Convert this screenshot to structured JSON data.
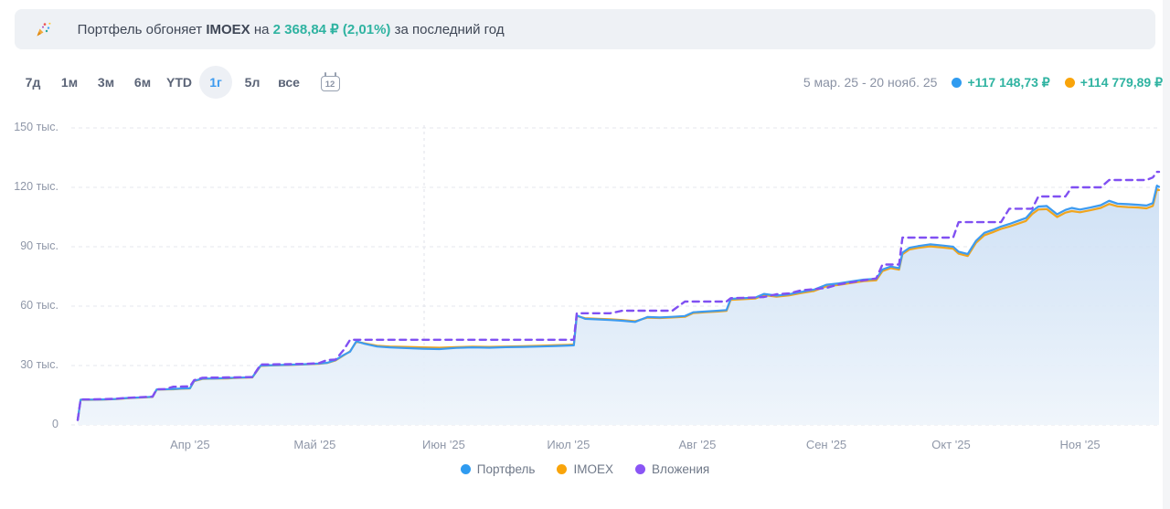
{
  "banner": {
    "icon": "party-popper",
    "text_before": "Портфель обгоняет ",
    "index_name": "IMOEX",
    "text_middle": " на ",
    "highlight": "2 368,84 ₽ (2,01%)",
    "text_after": " за последний год"
  },
  "toolbar": {
    "periods": [
      {
        "label": "7д",
        "selected": false
      },
      {
        "label": "1м",
        "selected": false
      },
      {
        "label": "3м",
        "selected": false
      },
      {
        "label": "6м",
        "selected": false
      },
      {
        "label": "YTD",
        "selected": false
      },
      {
        "label": "1г",
        "selected": true
      },
      {
        "label": "5л",
        "selected": false
      },
      {
        "label": "все",
        "selected": false
      }
    ],
    "calendar_day": "12",
    "date_range": "5 мар. 25 - 20 нояб. 25",
    "deltas": [
      {
        "series": "Портфель",
        "color": "#2f9bf0",
        "value": "+117 148,73 ₽"
      },
      {
        "series": "IMOEX",
        "color": "#f9a40a",
        "value": "+114 779,89 ₽"
      }
    ]
  },
  "legend": [
    {
      "label": "Портфель",
      "color": "#2f9bf0"
    },
    {
      "label": "IMOEX",
      "color": "#f9a40a"
    },
    {
      "label": "Вложения",
      "color": "#8a55f5"
    }
  ],
  "colors": {
    "accent_teal": "#2fb3a1",
    "portfolio_blue": "#3d9bf0",
    "imoex_orange": "#f0a51e",
    "deposits_purple": "#8050f2",
    "banner_bg": "#eef1f5",
    "grid": "#e4e7ed",
    "axis_text": "#8f97a8"
  },
  "chart_data": {
    "type": "line",
    "title": "Portfolio vs IMOEX vs contributions, last year",
    "x_unit": "days since 5 Mar 2025",
    "value_unit": "thousand ₽",
    "ylim": [
      0,
      150
    ],
    "grid": true,
    "legend_position": "bottom",
    "crosshair_day": 83.3,
    "yticks": [
      {
        "value": 0,
        "label": "0"
      },
      {
        "value": 30,
        "label": "30 тыс."
      },
      {
        "value": 60,
        "label": "60 тыс."
      },
      {
        "value": 90,
        "label": "90 тыс."
      },
      {
        "value": 120,
        "label": "120 тыс."
      },
      {
        "value": 150,
        "label": "150 тыс."
      }
    ],
    "months": [
      {
        "label": "Апр '25",
        "day": 27
      },
      {
        "label": "Май '25",
        "day": 57
      },
      {
        "label": "Июн '25",
        "day": 88
      },
      {
        "label": "Июл '25",
        "day": 118
      },
      {
        "label": "Авг '25",
        "day": 149
      },
      {
        "label": "Сен '25",
        "day": 180
      },
      {
        "label": "Окт '25",
        "day": 210
      },
      {
        "label": "Ноя '25",
        "day": 241
      }
    ],
    "days": [
      0,
      0.7,
      3,
      6,
      9,
      12,
      14,
      16,
      18,
      19,
      21,
      23,
      25,
      27,
      28,
      30,
      33,
      36,
      39,
      42,
      44,
      47,
      51,
      55,
      58,
      60,
      62,
      64,
      65.5,
      67,
      69,
      72,
      75,
      79,
      83,
      87,
      91,
      95,
      99,
      103,
      107,
      111,
      115,
      118,
      119.3,
      120,
      122,
      125,
      128,
      131,
      134,
      137,
      140,
      143,
      146,
      148,
      151,
      154,
      156,
      157,
      160,
      163,
      165,
      168,
      171,
      174,
      177,
      180,
      183,
      186,
      189,
      192,
      193.5,
      195.5,
      197.5,
      198.3,
      200,
      202,
      205,
      208,
      210.5,
      211.8,
      214,
      216,
      218,
      220,
      222,
      224,
      226,
      228,
      229.5,
      231,
      233,
      235.5,
      237.5,
      239,
      241,
      243.5,
      246,
      248,
      250,
      252.5,
      255,
      257,
      258.5,
      259.5,
      260
    ],
    "series": [
      {
        "name": "Портфель",
        "color": "#3d9bf0",
        "style": "solid",
        "fill": true,
        "values": [
          2.5,
          12.8,
          12.8,
          12.9,
          13.1,
          13.6,
          13.8,
          14,
          14.2,
          17.9,
          18,
          18.2,
          18.4,
          18.5,
          22.3,
          23.4,
          23.5,
          23.7,
          23.9,
          24.1,
          30,
          30.2,
          30.4,
          30.7,
          31,
          31.4,
          32.8,
          35.4,
          37,
          42.3,
          41,
          39.6,
          39.2,
          38.8,
          38.5,
          38.3,
          38.9,
          39.2,
          39,
          39.3,
          39.4,
          39.6,
          39.9,
          40.1,
          40.2,
          55.3,
          53.6,
          53.3,
          53,
          52.6,
          52,
          54.5,
          54.3,
          54.6,
          55,
          56.9,
          57.3,
          57.7,
          58,
          63.7,
          64,
          64.4,
          66.2,
          65.3,
          66,
          67.2,
          68.3,
          70.8,
          71.5,
          72.5,
          73.4,
          73.8,
          78.5,
          80,
          79.2,
          87,
          89.5,
          90.3,
          91.2,
          90.6,
          90,
          87.5,
          86.3,
          93,
          97,
          98.5,
          100.2,
          101.5,
          103,
          104.5,
          108,
          110.3,
          110.6,
          106.4,
          108.6,
          109.6,
          108.8,
          109.8,
          111,
          113.2,
          111.8,
          111.5,
          111.2,
          110.8,
          112,
          120.9,
          120.3
        ]
      },
      {
        "name": "IMOEX",
        "color": "#f0a51e",
        "style": "solid",
        "fill": false,
        "values": [
          2.5,
          12.7,
          12.7,
          12.8,
          13,
          13.5,
          13.7,
          13.9,
          14.1,
          17.8,
          17.9,
          18,
          18.3,
          18.4,
          22.1,
          23.2,
          23.4,
          23.5,
          23.8,
          24,
          29.8,
          30.1,
          30.3,
          30.6,
          30.9,
          31.3,
          32.6,
          35.2,
          37.2,
          42,
          41.2,
          40,
          39.6,
          39.4,
          39.2,
          39,
          39.3,
          39.5,
          39.4,
          39.6,
          39.8,
          40,
          40.3,
          40.5,
          40.6,
          55,
          53.9,
          53.6,
          53.4,
          53,
          52.4,
          54.2,
          54,
          54.3,
          54.6,
          56.5,
          56.9,
          57.3,
          57.6,
          63.2,
          63.5,
          63.9,
          65.6,
          64.8,
          65.4,
          66.6,
          67.6,
          70,
          70.7,
          71.7,
          72.6,
          73,
          77.7,
          79.2,
          78.4,
          86.2,
          88.6,
          89.4,
          90.2,
          89.6,
          89,
          86.5,
          85.3,
          92,
          95.8,
          97.3,
          99,
          100.2,
          101.6,
          103,
          106.5,
          108.8,
          109,
          105,
          107.2,
          108,
          107.4,
          108.4,
          109.6,
          111.6,
          110.4,
          110,
          109.8,
          109.4,
          110.6,
          119,
          118.6
        ]
      },
      {
        "name": "Вложения",
        "color": "#8050f2",
        "style": "dashed",
        "fill": false,
        "values": [
          2.5,
          12.9,
          12.9,
          13,
          13.2,
          13.7,
          13.9,
          14.1,
          14.3,
          18,
          18.1,
          19.3,
          19.4,
          19.5,
          22.6,
          23.8,
          23.9,
          24,
          24.1,
          24.2,
          30.5,
          30.6,
          30.7,
          30.9,
          31.2,
          32.8,
          33,
          38,
          43,
          43,
          43,
          43,
          43,
          43,
          43,
          43,
          43,
          43,
          43,
          43,
          43,
          43,
          43,
          43,
          43,
          56.4,
          56.4,
          56.4,
          56.4,
          57.7,
          57.7,
          57.7,
          57.7,
          57.7,
          62.3,
          62.3,
          62.3,
          62.3,
          62.3,
          64,
          64.2,
          64.4,
          64.6,
          66,
          66.4,
          68,
          68.6,
          69.2,
          71,
          72,
          73,
          74,
          81,
          81,
          81,
          94.6,
          94.6,
          94.6,
          94.6,
          94.6,
          94.6,
          102.4,
          102.4,
          102.4,
          102.4,
          102.4,
          102.4,
          109.2,
          109.2,
          109.2,
          109.2,
          115.4,
          115.4,
          115.4,
          115.4,
          120,
          120,
          120,
          120,
          123.7,
          123.7,
          123.7,
          123.7,
          123.7,
          125,
          127.8,
          127.8
        ]
      }
    ]
  }
}
